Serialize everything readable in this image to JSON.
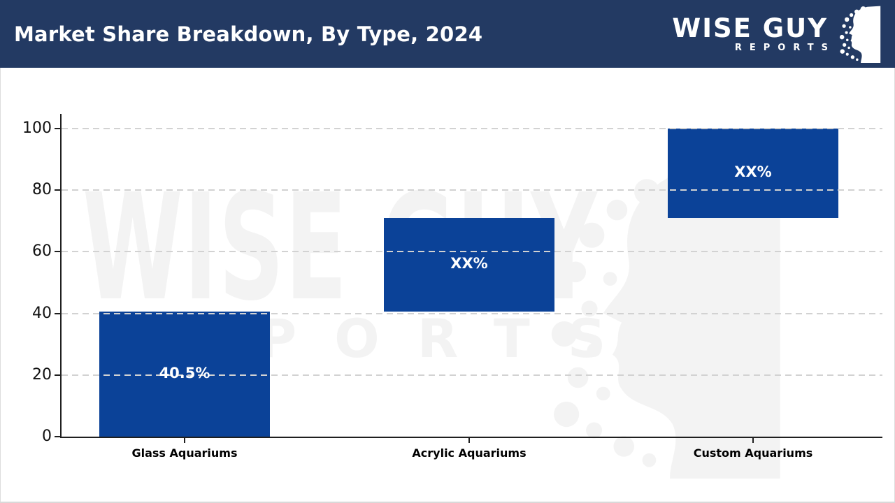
{
  "header": {
    "title": "Market Share Breakdown, By Type, 2024",
    "logo": {
      "line1": "WISE GUY",
      "line2": "REPORTS"
    }
  },
  "watermark": {
    "line1": "WISE GUY",
    "line2": "REPORTS"
  },
  "chart_data": {
    "type": "bar",
    "subtype": "waterfall",
    "title": "Market Share Breakdown, By Type, 2024",
    "categories": [
      "Glass Aquariums",
      "Acrylic Aquariums",
      "Custom Aquariums"
    ],
    "bars": [
      {
        "category": "Glass Aquariums",
        "label": "40.5%",
        "start": 0,
        "end": 40.5
      },
      {
        "category": "Acrylic Aquariums",
        "label": "XX%",
        "start": 40.5,
        "end": 71
      },
      {
        "category": "Custom Aquariums",
        "label": "XX%",
        "start": 71,
        "end": 100
      }
    ],
    "values_implied": [
      40.5,
      30.5,
      29
    ],
    "yticks": [
      0,
      20,
      40,
      60,
      80,
      100
    ],
    "ylim": [
      0,
      105
    ],
    "xlabel": "",
    "ylabel": "",
    "grid": "horizontal-dashed",
    "legend": "none",
    "colors": {
      "bar": "#0b4298",
      "bar_label": "#ffffff",
      "grid": "#d2d2d2",
      "axis": "#1f1f1f",
      "header_bg": "#233a63",
      "watermark": "#f3f3f3"
    }
  }
}
